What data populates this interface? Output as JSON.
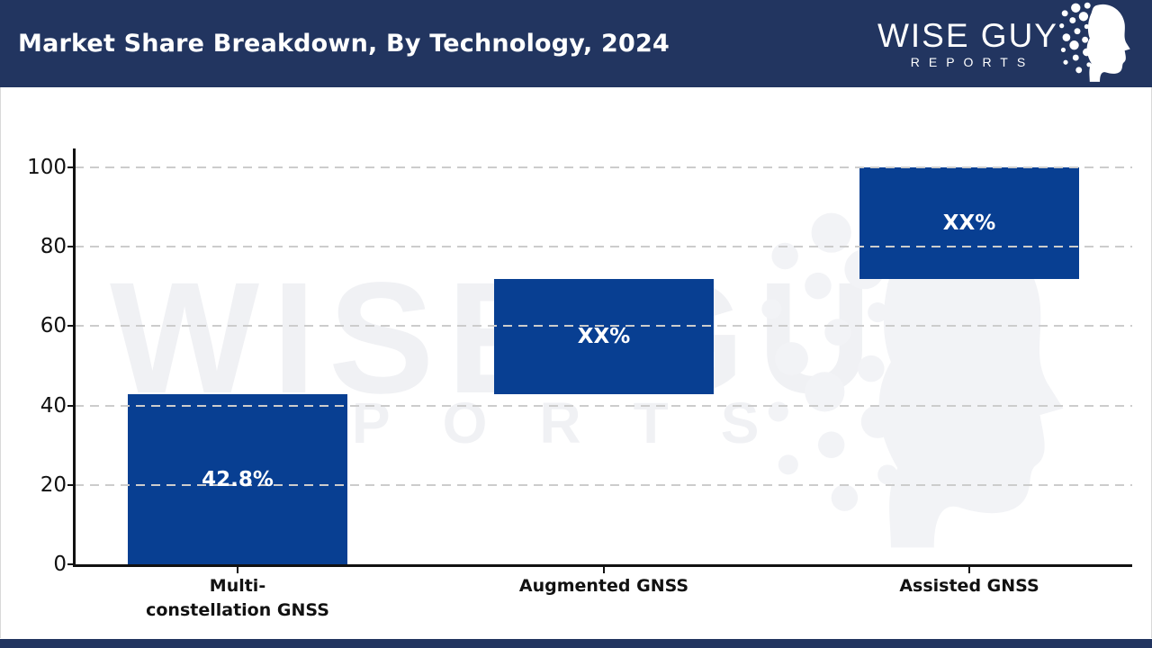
{
  "header": {
    "title": "Market Share Breakdown, By Technology, 2024",
    "bg_color": "#223560",
    "logo": {
      "name": "WISE GUY",
      "sub": "REPORTS"
    }
  },
  "watermark": {
    "line1": "WISE GUY",
    "line2": "REPORTS"
  },
  "chart_data": {
    "type": "bar",
    "subtype": "floating-percentage-breakdown",
    "title": "Market Share Breakdown, By Technology, 2024",
    "categories": [
      "Multi-\nconstellation GNSS",
      "Augmented GNSS",
      "Assisted GNSS"
    ],
    "series": [
      {
        "name": "Market share %",
        "segments": [
          {
            "category": "Multi-constellation GNSS",
            "start": 0,
            "end": 42.8,
            "label": "42.8%"
          },
          {
            "category": "Augmented GNSS",
            "start": 42.8,
            "end": 71.8,
            "label": "XX%"
          },
          {
            "category": "Assisted GNSS",
            "start": 71.8,
            "end": 100,
            "label": "XX%"
          }
        ]
      }
    ],
    "ylim": [
      0,
      105
    ],
    "yticks": [
      0,
      20,
      40,
      60,
      80,
      100
    ],
    "grid": {
      "axis": "y",
      "style": "dashed",
      "color": "#cccccc"
    },
    "bar_color": "#083f92",
    "bar_label_color": "#ffffff",
    "axis_color": "#111111",
    "xlabel": "",
    "ylabel": ""
  },
  "footer": {
    "bg_color": "#223560"
  }
}
